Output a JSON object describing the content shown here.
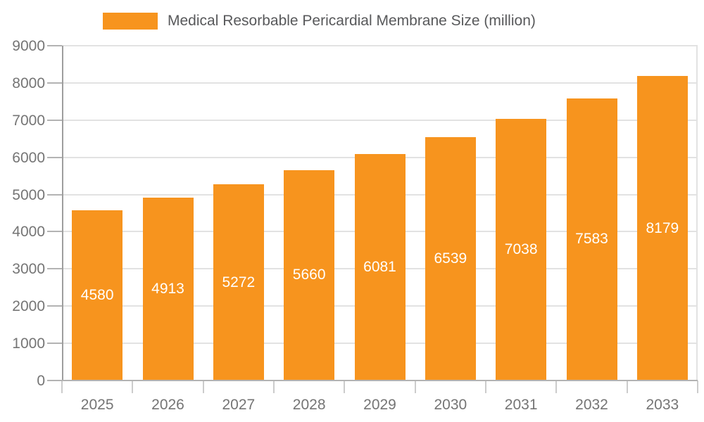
{
  "chart_data": {
    "type": "bar",
    "title": "Medical Resorbable Pericardial Membrane Size (million)",
    "legend": {
      "position": "top",
      "label": "Medical Resorbable Pericardial Membrane Size (million)"
    },
    "categories": [
      "2025",
      "2026",
      "2027",
      "2028",
      "2029",
      "2030",
      "2031",
      "2032",
      "2033"
    ],
    "values": [
      4580,
      4913,
      5272,
      5660,
      6081,
      6539,
      7038,
      7583,
      8179
    ],
    "xlabel": "",
    "ylabel": "",
    "ylim": [
      0,
      9000
    ],
    "yticks": [
      0,
      1000,
      2000,
      3000,
      4000,
      5000,
      6000,
      7000,
      8000,
      9000
    ],
    "grid": true,
    "value_labels_inside_bars": true
  },
  "colors": {
    "bar": "#f7941e",
    "gridline": "#e2e2e2",
    "y_axis_line": "#9e9e9e",
    "x_axis_line": "#b3b3b3",
    "y_tick": "#b3b3b3",
    "x_boundary_tick": "#cccccc",
    "right_border": "#e2e2e2",
    "axis_label_text": "#757575",
    "value_label_text": "#ffffff",
    "legend_text": "#58595b"
  }
}
